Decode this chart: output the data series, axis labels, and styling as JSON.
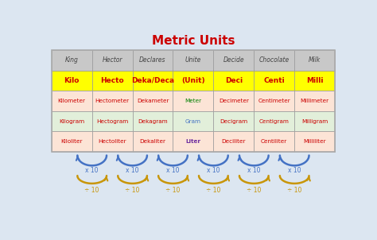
{
  "title": "Metric Units",
  "title_color": "#cc0000",
  "bg_color": "#dce6f1",
  "header_row": [
    "King",
    "Hector",
    "Declares",
    "Unite",
    "Decide",
    "Chocolate",
    "Milk"
  ],
  "prefix_row": [
    "Kilo",
    "Hecto",
    "Deka/Deca",
    "(Unit)",
    "Deci",
    "Centi",
    "Milli"
  ],
  "meter_row": [
    "Kilometer",
    "Hectometer",
    "Dekameter",
    "Meter",
    "Decimeter",
    "Centimeter",
    "Millimeter"
  ],
  "gram_row": [
    "Kilogram",
    "Hectogram",
    "Dekagram",
    "Gram",
    "Decigram",
    "Centigram",
    "Milligram"
  ],
  "liter_row": [
    "Kiloliter",
    "Hectoliter",
    "Dekaliter",
    "Liter",
    "Deciliter",
    "Centiliter",
    "Milliliter"
  ],
  "header_bg": "#c8c8c8",
  "prefix_bg": "#ffff00",
  "meter_bg": "#fce4d6",
  "gram_bg": "#e2efda",
  "liter_bg": "#fce4d6",
  "prefix_color": "#cc0000",
  "meter_prefix_color": "#cc0000",
  "meter_base_color": "#008000",
  "gram_prefix_color": "#cc0000",
  "gram_base_color": "#4472c4",
  "liter_base_color": "#7030a0",
  "liter_prefix_color": "#cc0000",
  "arrow_up_color": "#4472c4",
  "arrow_down_color": "#c8960a",
  "x10_color": "#4472c4",
  "div10_color": "#c8960a",
  "header_text_color": "#444444"
}
